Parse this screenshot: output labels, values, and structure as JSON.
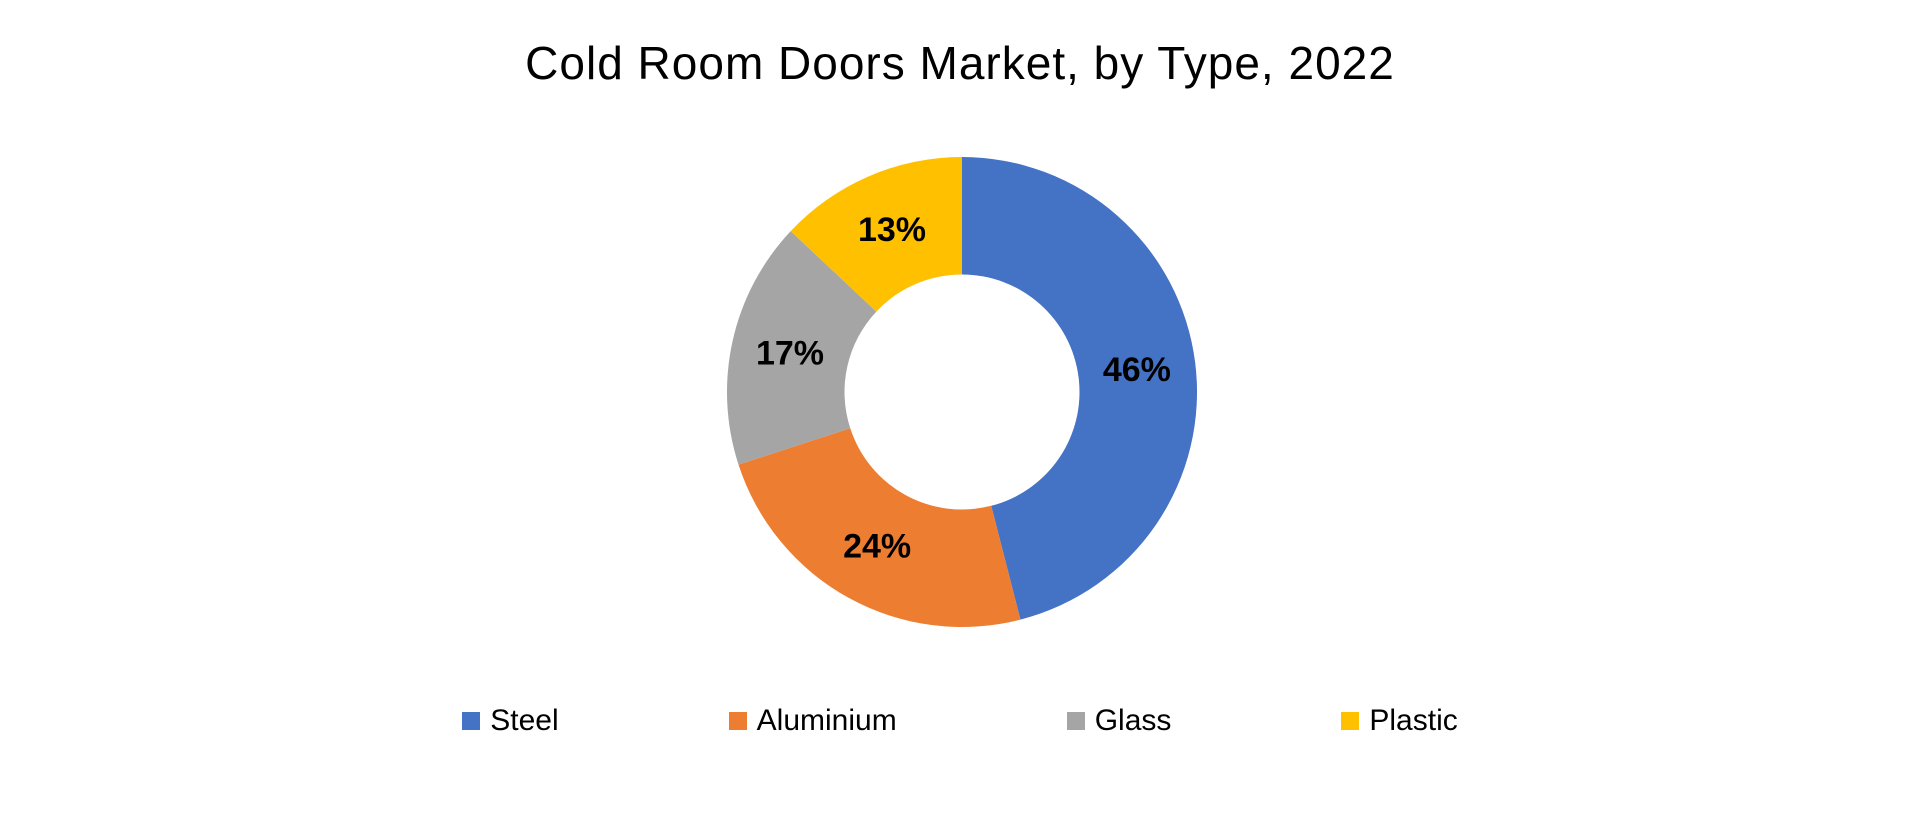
{
  "page": {
    "background_color": "#ffffff"
  },
  "chart_data": {
    "type": "pie",
    "subtype": "donut",
    "title": "Cold Room Doors Market, by Type, 2022",
    "categories": [
      "Steel",
      "Aluminium",
      "Glass",
      "Plastic"
    ],
    "values": [
      46,
      24,
      17,
      13
    ],
    "data_labels": [
      "46%",
      "24%",
      "17%",
      "13%"
    ],
    "colors": [
      "#4472C4",
      "#ED7D31",
      "#A5A5A5",
      "#FFC000"
    ],
    "start_angle_deg": 0,
    "direction": "clockwise",
    "hole_ratio": 0.5,
    "legend_position": "bottom",
    "data_label_color": "#000000",
    "title_color": "#000000"
  }
}
